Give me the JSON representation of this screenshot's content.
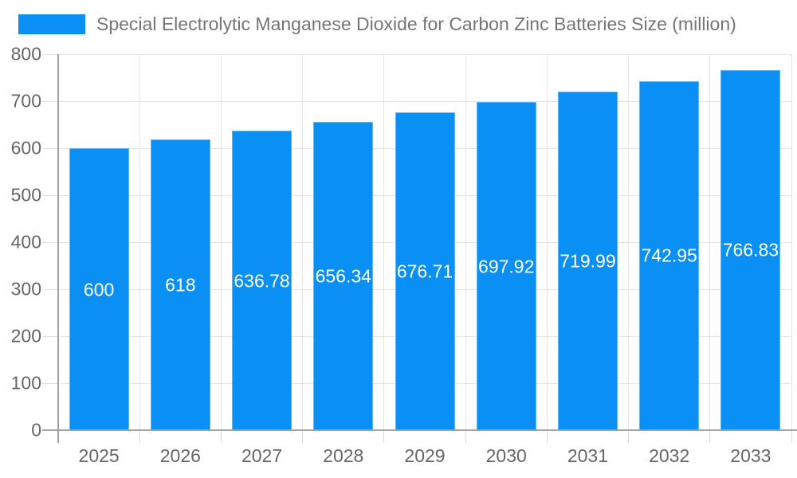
{
  "legend": {
    "position": "top-left"
  },
  "chart_data": {
    "type": "bar",
    "title": "Special Electrolytic Manganese Dioxide for Carbon Zinc Batteries Size (million)",
    "categories": [
      "2025",
      "2026",
      "2027",
      "2028",
      "2029",
      "2030",
      "2031",
      "2032",
      "2033"
    ],
    "values": [
      600,
      618,
      636.78,
      656.34,
      676.71,
      697.92,
      719.99,
      742.95,
      766.83
    ],
    "value_labels": [
      "600",
      "618",
      "636.78",
      "656.34",
      "676.71",
      "697.92",
      "719.99",
      "742.95",
      "766.83"
    ],
    "xlabel": "",
    "ylabel": "",
    "ylim": [
      0,
      800
    ],
    "y_ticks": [
      0,
      100,
      200,
      300,
      400,
      500,
      600,
      700,
      800
    ],
    "grid": true,
    "legend_position": "top-left",
    "colors": {
      "bar": "#0a8ff5",
      "bar_label": "#ffffff",
      "grid_line": "#e4e4e4",
      "axis_line": "#a2a2a2",
      "tick_label": "#666666",
      "title_text": "#757575",
      "background": "#ffffff"
    }
  }
}
